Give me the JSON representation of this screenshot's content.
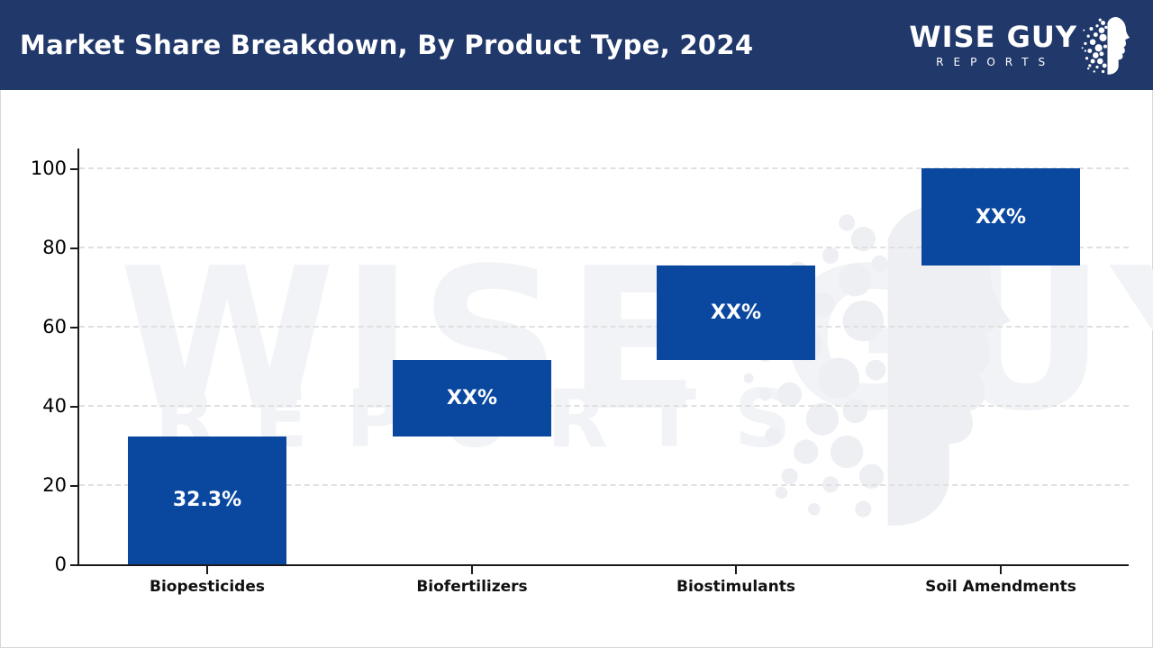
{
  "header": {
    "title": "Market Share Breakdown, By Product Type, 2024",
    "logo": {
      "line1": "WISE GUY",
      "line2": "REPORTS",
      "icon": "dotted-face-profile-icon"
    }
  },
  "watermark": {
    "line1": "WISE GUY",
    "line2": "REPORTS",
    "icon": "dotted-face-profile-icon"
  },
  "colors": {
    "header_bg": "#21386B",
    "bar": "#0A48A0",
    "axis": "#1a1a1a",
    "grid": "#e0e0e0",
    "bar_label": "#ffffff",
    "watermark": "#f2f3f6"
  },
  "chart_data": {
    "type": "bar",
    "subtype": "waterfall",
    "title": "Market Share Breakdown, By Product Type, 2024",
    "categories": [
      "Biopesticides",
      "Biofertilizers",
      "Biostimulants",
      "Soil Amendments"
    ],
    "segments": [
      {
        "category": "Biopesticides",
        "start": 0,
        "end": 32.3,
        "label": "32.3%"
      },
      {
        "category": "Biofertilizers",
        "start": 32.3,
        "end": 51.5,
        "label": "XX%"
      },
      {
        "category": "Biostimulants",
        "start": 51.5,
        "end": 75.4,
        "label": "XX%"
      },
      {
        "category": "Soil Amendments",
        "start": 75.4,
        "end": 100,
        "label": "XX%"
      }
    ],
    "xlabel": "",
    "ylabel": "",
    "ylim": [
      0,
      100
    ],
    "yticks": [
      0,
      20,
      40,
      60,
      80,
      100
    ],
    "grid": "horizontal-dashed",
    "legend": "none"
  }
}
